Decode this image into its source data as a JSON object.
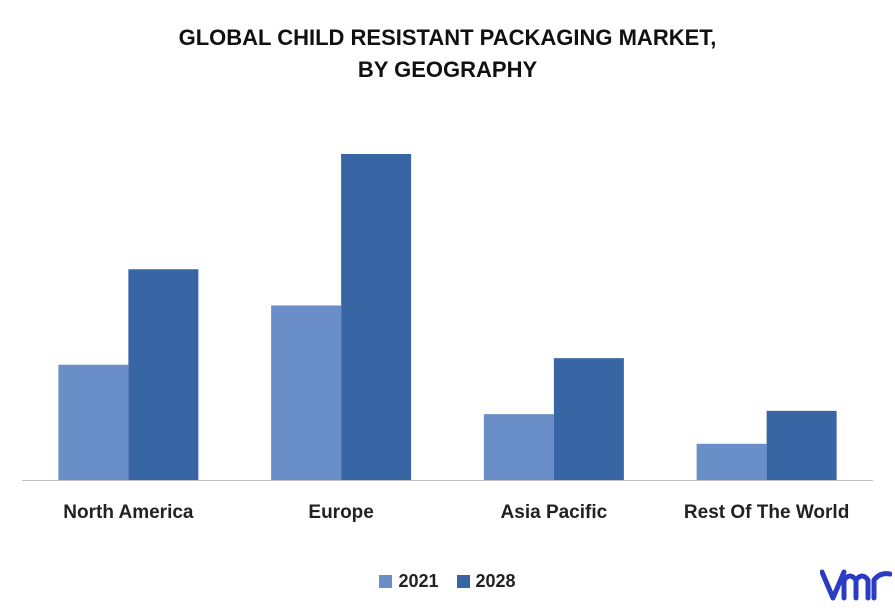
{
  "chart_data": {
    "type": "bar",
    "title_lines": [
      "GLOBAL CHILD RESISTANT PACKAGING MARKET,",
      "BY GEOGRAPHY"
    ],
    "categories": [
      "North America",
      "Europe",
      "Asia Pacific",
      "Rest Of The World"
    ],
    "series": [
      {
        "name": "2021",
        "color": "#6a8fc8",
        "values": [
          35,
          53,
          20,
          11
        ]
      },
      {
        "name": "2028",
        "color": "#3865a4",
        "values": [
          64,
          99,
          37,
          21
        ]
      }
    ],
    "ylim": [
      0,
      100
    ],
    "grid": false,
    "legend_position": "bottom-center",
    "xlabel": "",
    "ylabel": ""
  },
  "logo": {
    "name": "vmr-logo-icon",
    "color": "#2b3cc4"
  }
}
